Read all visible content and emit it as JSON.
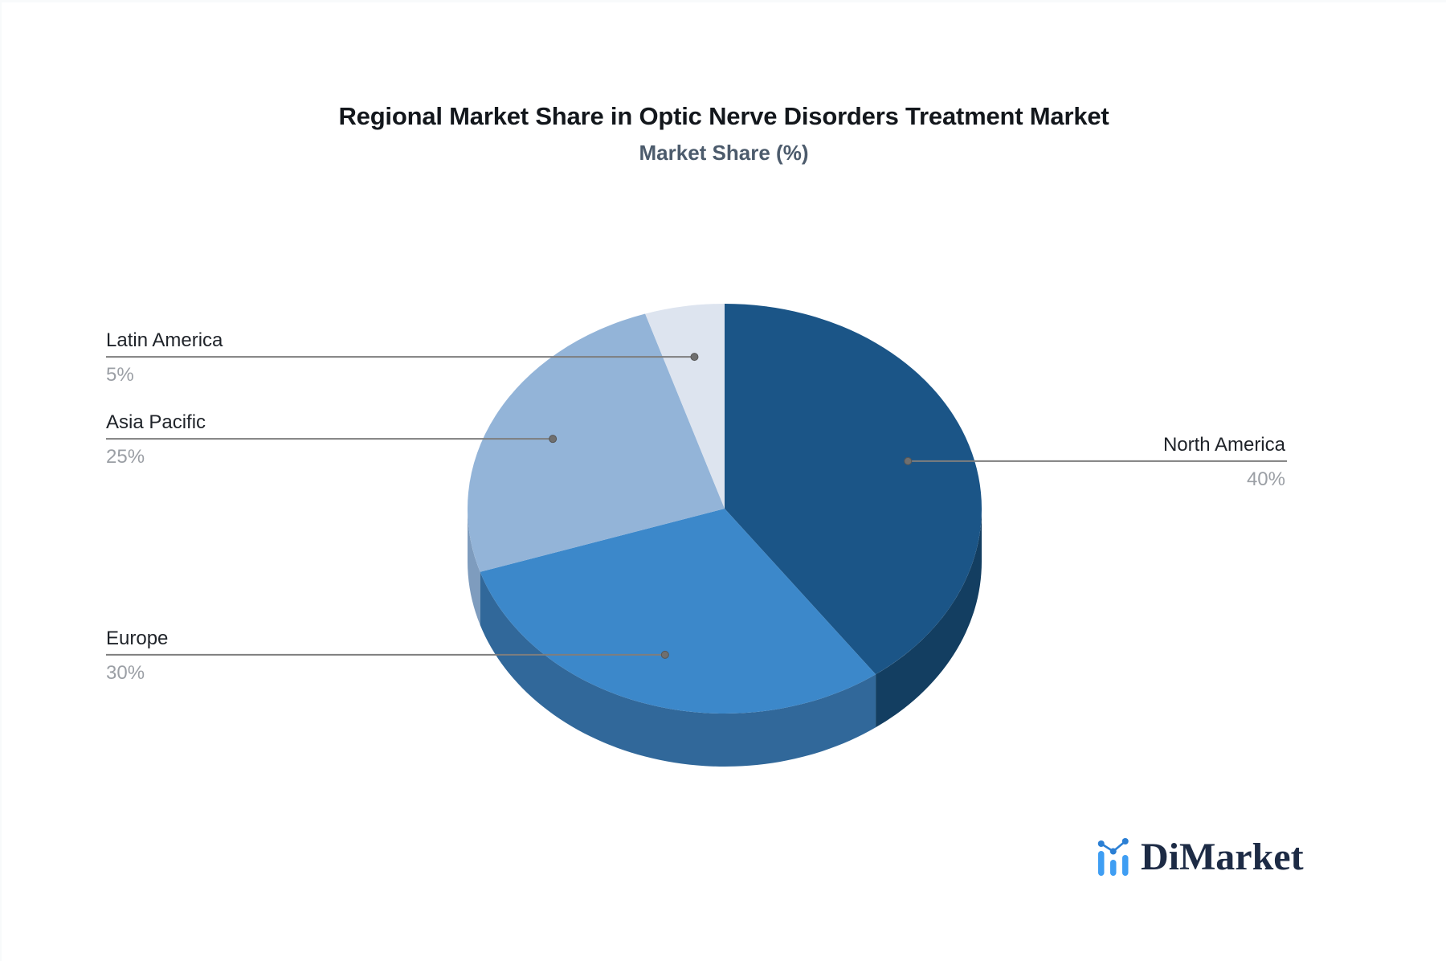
{
  "title": "Regional Market Share in Optic Nerve Disorders Treatment Market",
  "subtitle": "Market Share (%)",
  "chart_data": {
    "type": "pie",
    "style": "3d",
    "title": "Regional Market Share in Optic Nerve Disorders Treatment Market",
    "subtitle": "Market Share (%)",
    "unit": "%",
    "start_angle_deg": 0,
    "direction": "clockwise",
    "label_style": "callout",
    "legend": "none",
    "slices": [
      {
        "region": "North America",
        "value": 40,
        "label": "40%",
        "color": "#1b5587",
        "depth_color": "#133e61"
      },
      {
        "region": "Europe",
        "value": 30,
        "label": "30%",
        "color": "#3c88ca",
        "depth_color": "#31689a"
      },
      {
        "region": "Asia Pacific",
        "value": 25,
        "label": "25%",
        "color": "#93b4d8",
        "depth_color": "#7e9cbe"
      },
      {
        "region": "Latin America",
        "value": 5,
        "label": "5%",
        "color": "#dde4ef",
        "depth_color": "#c3cdde"
      }
    ]
  },
  "leader": {
    "line_color": "#7e7e7e",
    "dot_color": "#6f6f6f",
    "dot_ring_color": "#565656"
  },
  "label_colors": {
    "name": "#1f2329",
    "value": "#9b9fa5"
  },
  "branding": {
    "logo_text": "DiMarket",
    "logo_icon": "bar-chart-trend-icon",
    "text_color": "#1d2b45",
    "icon_bar_color": "#3f9ef3",
    "icon_line_color": "#2b7fd4"
  }
}
